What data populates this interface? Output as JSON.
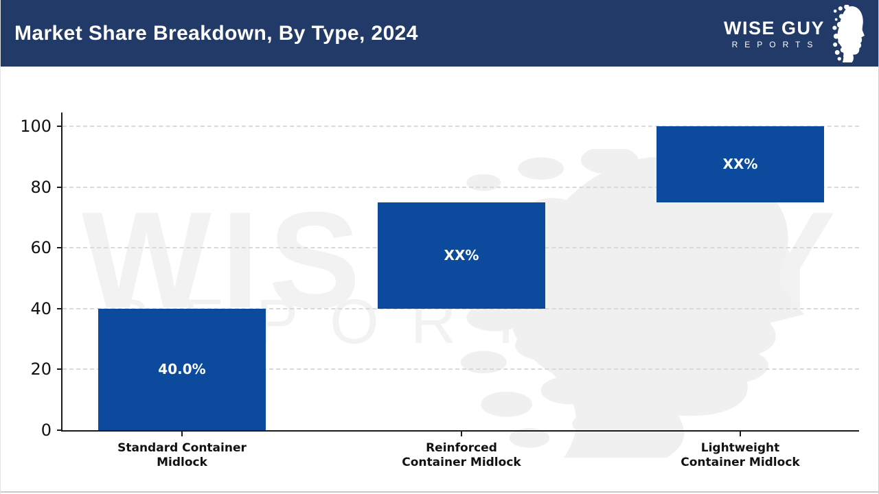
{
  "header": {
    "title": "Market Share Breakdown, By Type, 2024",
    "logo": {
      "line1": "WISE GUY",
      "line2": "REPORTS"
    }
  },
  "watermark": {
    "line1": "WISE GUY",
    "line2": "REPORTS"
  },
  "chart_data": {
    "type": "bar",
    "variant": "floating-segment-bars",
    "title": "Market Share Breakdown, By Type, 2024",
    "categories": [
      "Standard Container\nMidlock",
      "Reinforced\nContainer Midlock",
      "Lightweight\nContainer Midlock"
    ],
    "bars": [
      {
        "category": "Standard Container Midlock",
        "start": 0,
        "end": 40,
        "label": "40.0%"
      },
      {
        "category": "Reinforced Container Midlock",
        "start": 40,
        "end": 75,
        "label": "XX%"
      },
      {
        "category": "Lightweight Container Midlock",
        "start": 75,
        "end": 100,
        "label": "XX%"
      }
    ],
    "yticks": [
      0,
      20,
      40,
      60,
      80,
      100
    ],
    "ylim": [
      0,
      104.5
    ],
    "xlabel": "",
    "ylabel": "",
    "grid": "horizontal-dashed",
    "legend": "none",
    "bar_color": "#0b4a9d",
    "value_label_color": "#ffffff",
    "gridline_color": "#d9d9d9",
    "axis_color": "#1a1a1a",
    "header_bg_color": "#223a68"
  }
}
